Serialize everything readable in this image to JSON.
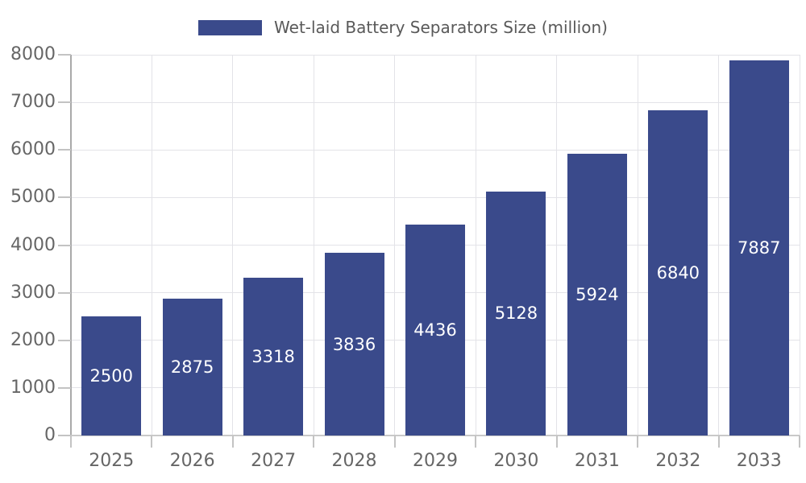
{
  "legend": {
    "label": "Wet-laid Battery Separators Size (million)"
  },
  "colors": {
    "bar": "#3A4A8B",
    "bar_label": "#ffffff",
    "grid": "#e3e3e8",
    "y_axis_line": "#a9a9a9",
    "x_axis_line": "#c9c9c9",
    "tick": "#c3c3c3",
    "axis_label": "#666666",
    "legend_text": "#595959"
  },
  "chart_data": {
    "type": "bar",
    "title": "Wet-laid Battery Separators Size (million)",
    "categories": [
      "2025",
      "2026",
      "2027",
      "2028",
      "2029",
      "2030",
      "2031",
      "2032",
      "2033"
    ],
    "values": [
      2500,
      2875,
      3318,
      3836,
      4436,
      5128,
      5924,
      6840,
      7887
    ],
    "xlabel": "",
    "ylabel": "",
    "ylim": [
      0,
      8000
    ],
    "ytick_step": 1000,
    "ytick_labels": [
      "0",
      "1000",
      "2000",
      "3000",
      "4000",
      "5000",
      "6000",
      "7000",
      "8000"
    ],
    "grid": true,
    "legend_position": "top",
    "bar_labels_inside": true
  }
}
